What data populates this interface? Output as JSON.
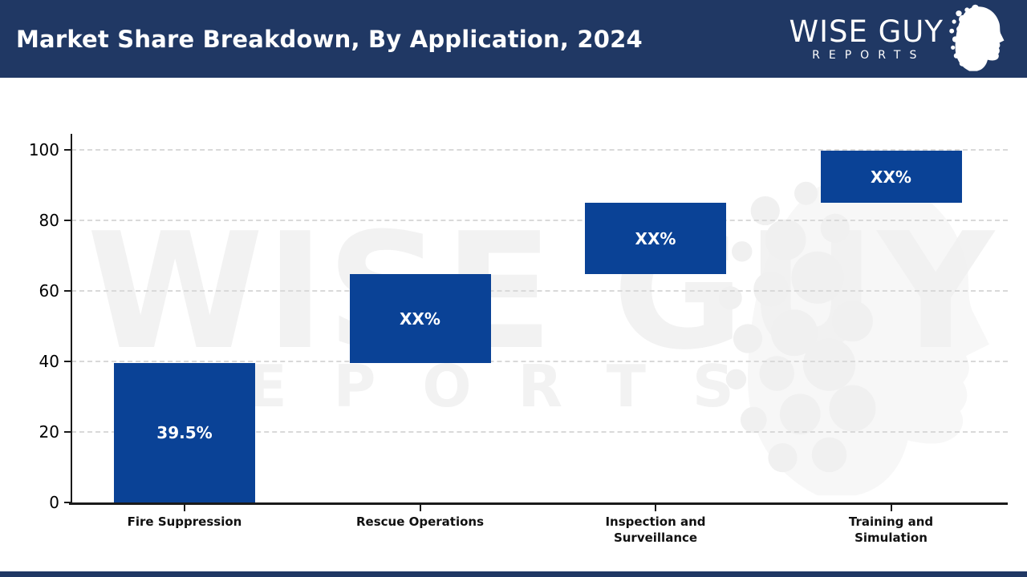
{
  "header": {
    "title": "Market Share Breakdown, By Application, 2024",
    "logo": {
      "line1": "WISE GUY",
      "line2": "REPORTS"
    }
  },
  "watermark": {
    "line1": "WISE GUY",
    "line2": "REPORTS"
  },
  "colors": {
    "header_bg": "#203864",
    "bar": "#0a4296",
    "bar_label": "#ffffff",
    "gridline": "#d9d9d9",
    "axis": "#1a1a1a",
    "watermark": "#f2f2f2"
  },
  "chart_data": {
    "type": "bar",
    "subtype": "waterfall-floating-bars",
    "title": "Market Share Breakdown, By Application, 2024",
    "xlabel": "",
    "ylabel": "",
    "categories": [
      "Fire Suppression",
      "Rescue Operations",
      "Inspection and Surveillance",
      "Training and Simulation"
    ],
    "bars": [
      {
        "category": "Fire Suppression",
        "start": 0,
        "end": 39.5,
        "value_label": "39.5%"
      },
      {
        "category": "Rescue Operations",
        "start": 39.5,
        "end": 64.8,
        "value_label": "XX%"
      },
      {
        "category": "Inspection and Surveillance",
        "start": 64.8,
        "end": 84.9,
        "value_label": "XX%"
      },
      {
        "category": "Training and Simulation",
        "start": 84.9,
        "end": 99.8,
        "value_label": "XX%"
      }
    ],
    "yticks": [
      0,
      20,
      40,
      60,
      80,
      100
    ],
    "ylim": [
      0,
      105
    ],
    "grid": "horizontal-dashed",
    "legend": "none"
  }
}
